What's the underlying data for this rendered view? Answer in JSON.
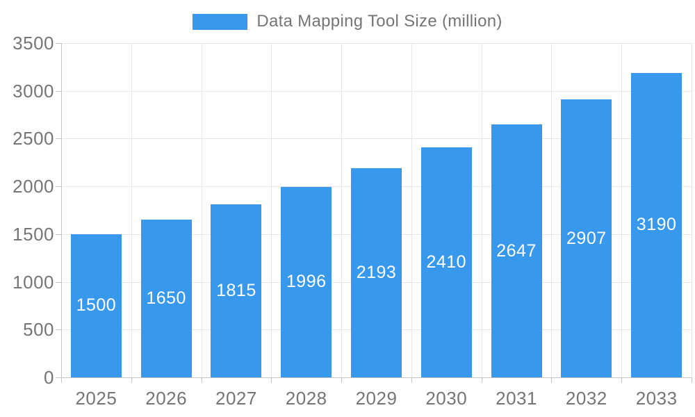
{
  "chart_data": {
    "type": "bar",
    "title": "Data Mapping Tool Size (million)",
    "categories": [
      "2025",
      "2026",
      "2027",
      "2028",
      "2029",
      "2030",
      "2031",
      "2032",
      "2033"
    ],
    "series": [
      {
        "name": "Data Mapping Tool Size (million)",
        "values": [
          1500,
          1650,
          1815,
          1996,
          2193,
          2410,
          2647,
          2907,
          3190
        ]
      }
    ],
    "xlabel": "",
    "ylabel": "",
    "ylim": [
      0,
      3500
    ],
    "yticks": [
      0,
      500,
      1000,
      1500,
      2000,
      2500,
      3000,
      3500
    ],
    "grid": true,
    "legend_position": "top",
    "colors": {
      "bar": "#3899EC",
      "value_label": "#FFFFFF",
      "axis_text": "#757575",
      "grid_line": "#E6E6E6",
      "axis_line": "#C6C6C6",
      "legend_text": "#757575",
      "background": "#FFFFFF"
    }
  }
}
